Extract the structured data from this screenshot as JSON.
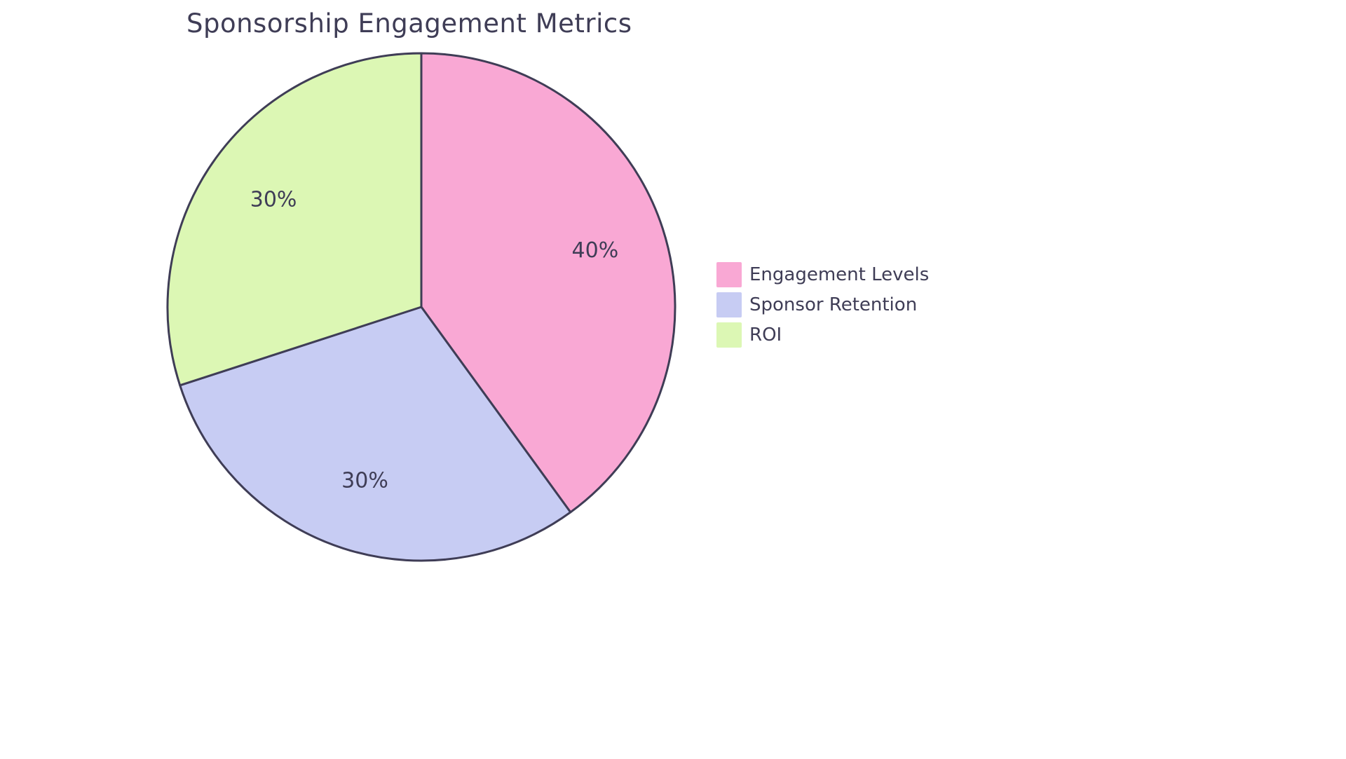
{
  "chart_data": {
    "type": "pie",
    "title": "Sponsorship Engagement Metrics",
    "slices": [
      {
        "label": "Engagement Levels",
        "value": 40,
        "display": "40%",
        "color": "#F9A8D4"
      },
      {
        "label": "Sponsor Retention",
        "value": 30,
        "display": "30%",
        "color": "#C7CCF3"
      },
      {
        "label": "ROI",
        "value": 30,
        "display": "30%",
        "color": "#DCF7B4"
      }
    ],
    "start_angle_deg": -90,
    "direction": "clockwise",
    "stroke_color": "#3F3D56",
    "label_color": "#3F3D56",
    "legend_position": "right",
    "background": "#FFFFFF"
  }
}
